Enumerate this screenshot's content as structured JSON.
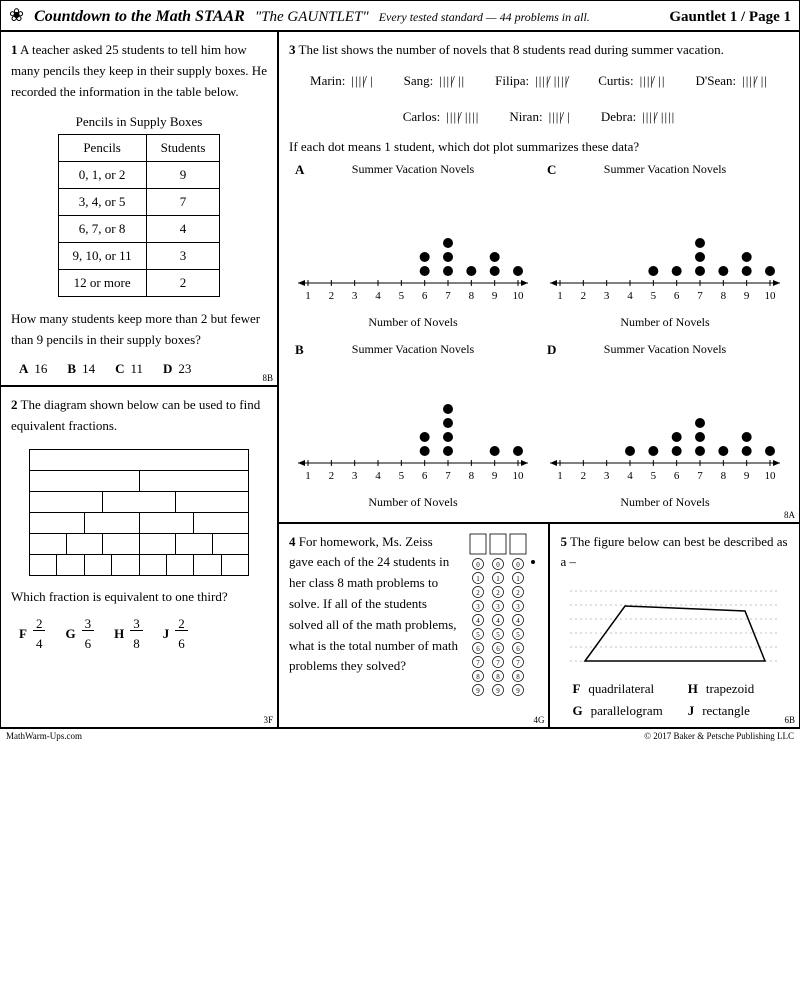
{
  "header": {
    "title": "Countdown to the Math STAAR",
    "sub": "\"The GAUNTLET\"",
    "tag": "Every tested standard — 44 problems in all.",
    "page": "Gauntlet 1 / Page 1"
  },
  "p1": {
    "text": "A teacher asked 25 students to tell him how many pencils they keep in their supply boxes. He recorded the information in the table below.",
    "table_title": "Pencils in Supply Boxes",
    "col1": "Pencils",
    "col2": "Students",
    "rows": [
      [
        "0, 1, or 2",
        "9"
      ],
      [
        "3, 4, or 5",
        "7"
      ],
      [
        "6, 7, or 8",
        "4"
      ],
      [
        "9, 10, or 11",
        "3"
      ],
      [
        "12 or more",
        "2"
      ]
    ],
    "question": "How many students keep more than 2 but fewer than 9 pencils in their supply boxes?",
    "choices": {
      "A": "16",
      "B": "14",
      "C": "11",
      "D": "23"
    },
    "code": "8B"
  },
  "p2": {
    "text": "The diagram shown below can be used to find equivalent fractions.",
    "question": "Which fraction is equivalent to one third?",
    "choices": [
      {
        "l": "F",
        "n": "2",
        "d": "4"
      },
      {
        "l": "G",
        "n": "3",
        "d": "6"
      },
      {
        "l": "H",
        "n": "3",
        "d": "8"
      },
      {
        "l": "J",
        "n": "2",
        "d": "6"
      }
    ],
    "diagram_rows": [
      1,
      2,
      3,
      4,
      6,
      8
    ],
    "code": "3F"
  },
  "p3": {
    "text": "The list shows the number of novels that 8 students read during summer vacation.",
    "students": [
      {
        "name": "Marin:",
        "tally": "||||̸ |"
      },
      {
        "name": "Sang:",
        "tally": "||||̸ ||"
      },
      {
        "name": "Filipa:",
        "tally": "||||̸ ||||̸"
      },
      {
        "name": "Curtis:",
        "tally": "||||̸ ||"
      },
      {
        "name": "D'Sean:",
        "tally": "||||̸ ||"
      },
      {
        "name": "Carlos:",
        "tally": "||||̸ ||||"
      },
      {
        "name": "Niran:",
        "tally": "||||̸ |"
      },
      {
        "name": "Debra:",
        "tally": "||||̸ ||||"
      }
    ],
    "question": "If each dot means 1 student, which dot plot summarizes these data?",
    "plot_title": "Summer Vacation Novels",
    "plot_xlabel": "Number of Novels",
    "axis_ticks": [
      1,
      2,
      3,
      4,
      5,
      6,
      7,
      8,
      9,
      10
    ],
    "plots": {
      "A": {
        "6": 2,
        "7": 3,
        "8": 1,
        "9": 2,
        "10": 1
      },
      "B": {
        "6": 2,
        "7": 4,
        "9": 1,
        "10": 1
      },
      "C": {
        "5": 1,
        "6": 1,
        "7": 3,
        "8": 1,
        "9": 2,
        "10": 1
      },
      "D": {
        "4": 1,
        "5": 1,
        "6": 2,
        "7": 3,
        "8": 1,
        "9": 2,
        "10": 1
      }
    },
    "code": "8A"
  },
  "p4": {
    "text": "For homework, Ms. Zeiss gave each of the 24 students in her class 8 math problems to solve. If all of the students solved all of the math problems, what is the total number of math problems they solved?",
    "code": "4G"
  },
  "p5": {
    "text": "The figure below can best be described as a –",
    "choices": {
      "F": "quadrilateral",
      "G": "parallelogram",
      "H": "trapezoid",
      "J": "rectangle"
    },
    "code": "6B"
  },
  "footer": {
    "left": "MathWarm-Ups.com",
    "right": "© 2017 Baker & Petsche Publishing LLC"
  },
  "colors": {
    "text": "#000000",
    "border": "#000000",
    "dot": "#000000"
  }
}
